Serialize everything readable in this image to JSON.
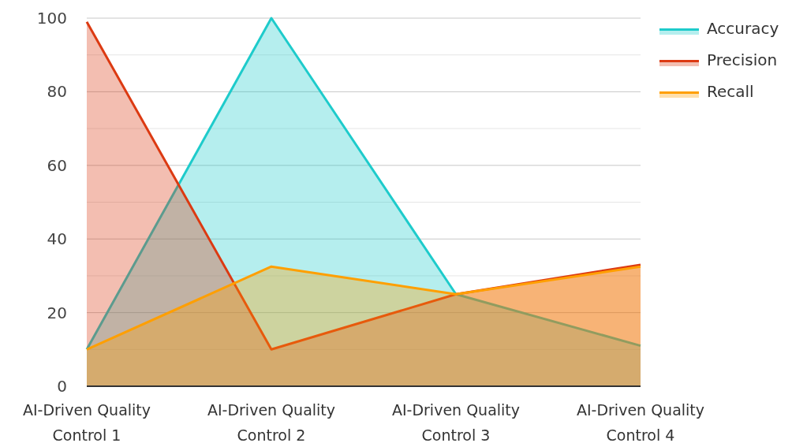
{
  "chart_data": {
    "type": "area",
    "categories": [
      "AI-Driven Quality Control 1",
      "AI-Driven Quality Control 2",
      "AI-Driven Quality Control 3",
      "AI-Driven Quality Control 4"
    ],
    "series": [
      {
        "name": "Accuracy",
        "color": "#1ecbcb",
        "values": [
          10,
          100,
          25,
          11
        ]
      },
      {
        "name": "Precision",
        "color": "#dc3a12",
        "values": [
          99,
          10,
          25,
          33
        ]
      },
      {
        "name": "Recall",
        "color": "#ff9f00",
        "values": [
          10,
          32.5,
          25,
          32.5
        ]
      }
    ],
    "ylim": [
      0,
      100
    ],
    "yticks": [
      0,
      {
        "value": 10,
        "label": null
      },
      20,
      {
        "value": 30,
        "label": null
      },
      40,
      {
        "value": 50,
        "label": null
      },
      60,
      {
        "value": 70,
        "label": null
      },
      80,
      {
        "value": 90,
        "label": null
      },
      100
    ],
    "grid": "y",
    "legend": "top right"
  }
}
